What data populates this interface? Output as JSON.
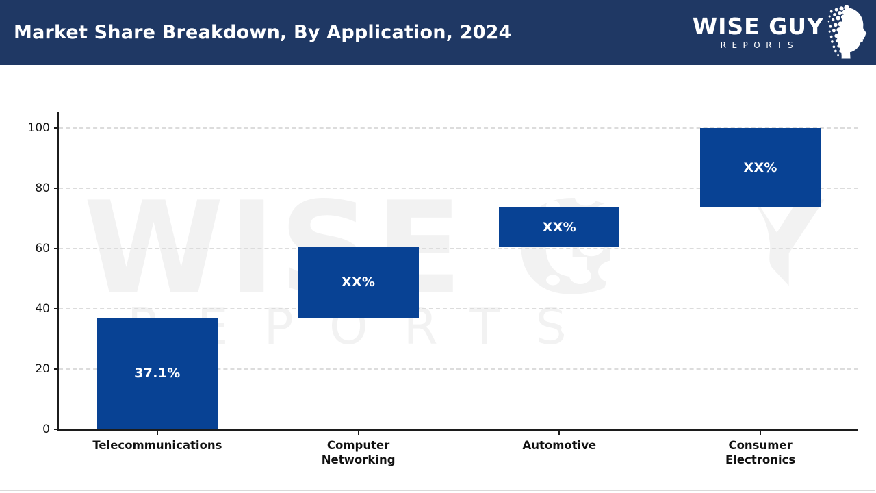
{
  "header": {
    "title": "Market Share Breakdown, By Application, 2024",
    "logo": {
      "line1": "WISE GUY",
      "line2": "REPORTS"
    }
  },
  "watermark": {
    "line1": "WISE GUY",
    "line2": "REPORTS"
  },
  "colors": {
    "header_bg": "#1f3864",
    "bar": "#084294",
    "bar_label": "#ffffff",
    "grid": "#dcdcdc",
    "axis": "#1c1c1c",
    "watermark": "#f2f2f2"
  },
  "chart_data": {
    "type": "bar",
    "subtype": "waterfall",
    "title": "Market Share Breakdown, By Application, 2024",
    "xlabel": "",
    "ylabel": "",
    "ylim": [
      0,
      105.5
    ],
    "yticks": [
      0,
      20,
      40,
      60,
      80,
      100
    ],
    "grid": "horizontal dashed, on",
    "legend": "none",
    "categories": [
      "Telecommunications",
      "Computer\nNetworking",
      "Automotive",
      "Consumer\nElectronics"
    ],
    "series": [
      {
        "category": "Telecommunications",
        "start": 0,
        "end": 37.1,
        "value_label": "37.1%"
      },
      {
        "category": "Computer Networking",
        "start": 37.1,
        "end": 60.5,
        "value_label": "XX%"
      },
      {
        "category": "Automotive",
        "start": 60.5,
        "end": 73.6,
        "value_label": "XX%"
      },
      {
        "category": "Consumer Electronics",
        "start": 73.6,
        "end": 100,
        "value_label": "XX%"
      }
    ]
  }
}
